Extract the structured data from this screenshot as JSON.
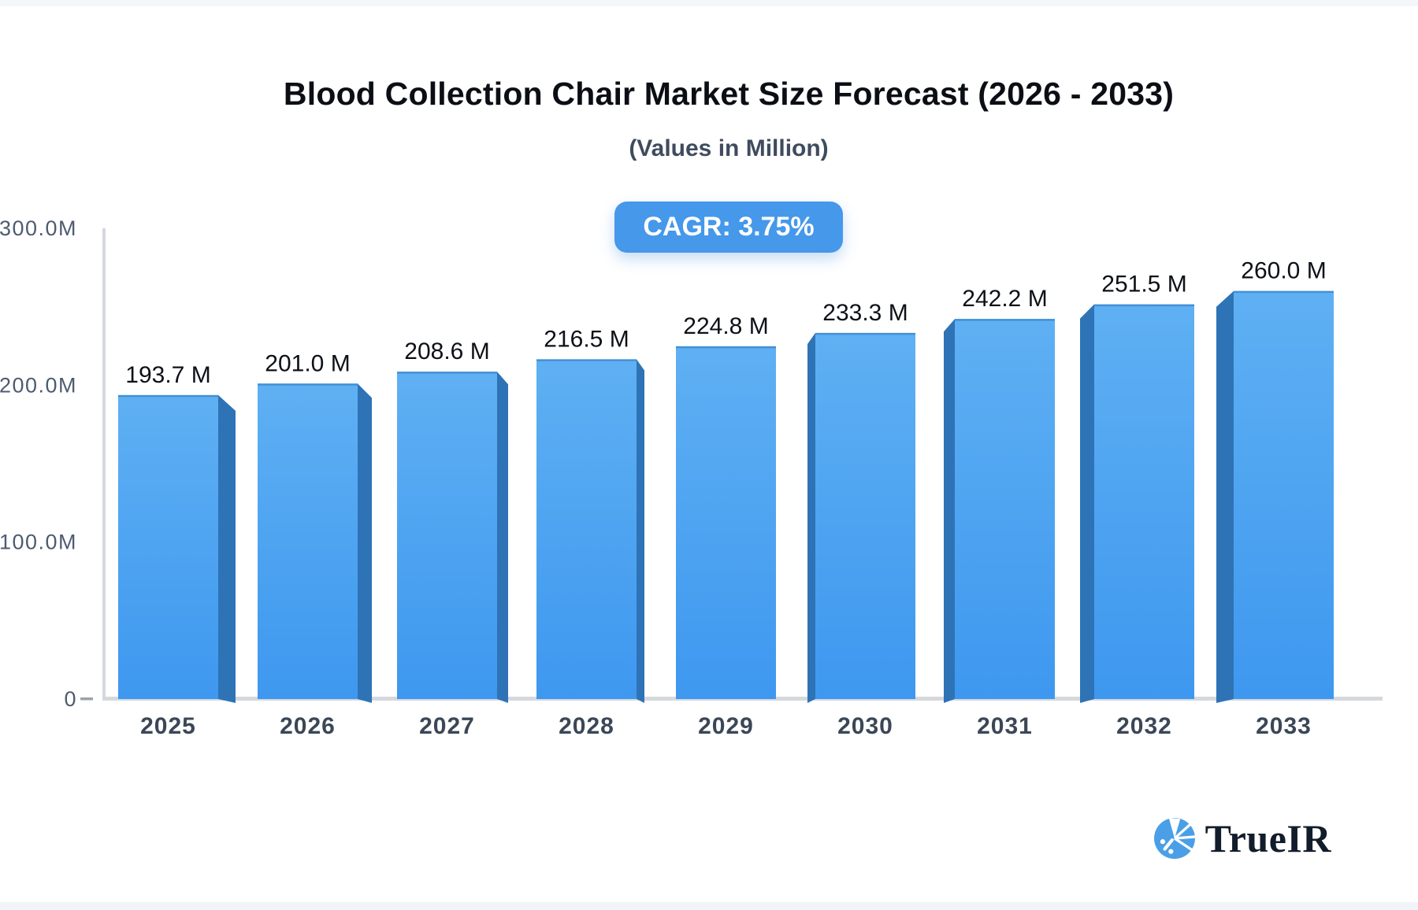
{
  "brand": {
    "text": "TrueIR",
    "icon": "pie-chart-icon",
    "icon_color": "#4a9fe6"
  },
  "chart_data": {
    "type": "bar",
    "title": "Blood Collection Chair Market Size Forecast (2026 - 2033)",
    "subtitle": "(Values in Million)",
    "cagr_label": "CAGR: 3.75%",
    "categories": [
      "2025",
      "2026",
      "2027",
      "2028",
      "2029",
      "2030",
      "2031",
      "2032",
      "2033"
    ],
    "values": [
      193.7,
      201.0,
      208.6,
      216.5,
      224.8,
      233.3,
      242.2,
      251.5,
      260.0
    ],
    "value_labels": [
      "193.7 M",
      "201.0 M",
      "208.6 M",
      "216.5 M",
      "224.8 M",
      "233.3 M",
      "242.2 M",
      "251.5 M",
      "260.0 M"
    ],
    "xlabel": "",
    "ylabel": "",
    "ylim": [
      0,
      300
    ],
    "y_ticks": [
      {
        "value": 300,
        "label": "300.0M"
      },
      {
        "value": 200,
        "label": "200.0M"
      },
      {
        "value": 100,
        "label": "100.0M"
      },
      {
        "value": 0,
        "label": "0"
      }
    ],
    "grid": false,
    "legend": "none",
    "style_3d": true,
    "colors": {
      "bar_top": "#5fb0f3",
      "bar_bottom": "#3e98ef",
      "bar_side": "#2e73b6",
      "bar_edge": "#4590d6",
      "axis": "#d5d8dd",
      "tick_dash": "#9aa3ad",
      "tick_text": "#4e5b70",
      "year_text": "#3b4757",
      "value_text": "#0d1117",
      "badge": "#4598ea"
    }
  }
}
